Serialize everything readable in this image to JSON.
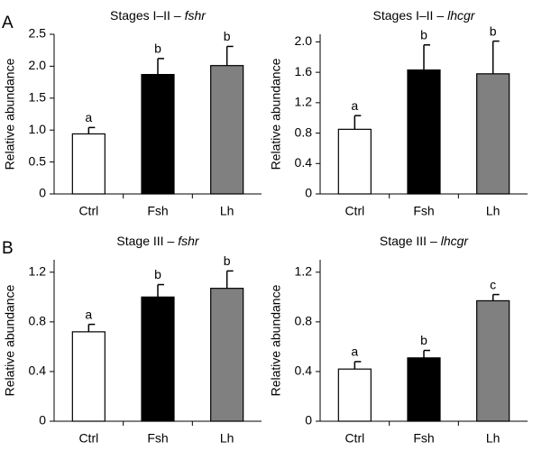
{
  "chart_data": [
    {
      "type": "bar",
      "panel_label": "A",
      "title": "Stages I–II –",
      "title_italic": "fshr",
      "ylabel": "Relative abundance",
      "categories": [
        "Ctrl",
        "Fsh",
        "Lh"
      ],
      "values": [
        0.94,
        1.87,
        2.01
      ],
      "errors": [
        0.1,
        0.25,
        0.3
      ],
      "sig_labels": [
        "a",
        "b",
        "b"
      ],
      "colors": [
        "#ffffff",
        "#000000",
        "#808080"
      ],
      "ylim": [
        0,
        2.5
      ],
      "yticks": [
        0,
        0.5,
        {
          "value": 1,
          "label": "1.0"
        },
        1.5,
        {
          "value": 2,
          "label": "2.0"
        },
        2.5
      ]
    },
    {
      "type": "bar",
      "title": "Stages I–II –",
      "title_italic": "lhcgr",
      "ylabel": "Relative abundance",
      "categories": [
        "Ctrl",
        "Fsh",
        "Lh"
      ],
      "values": [
        0.85,
        1.63,
        1.58
      ],
      "errors": [
        0.18,
        0.33,
        0.43
      ],
      "sig_labels": [
        "a",
        "b",
        "b"
      ],
      "colors": [
        "#ffffff",
        "#000000",
        "#808080"
      ],
      "ylim": [
        0,
        2.1
      ],
      "yticks": [
        0,
        0.4,
        0.8,
        1.2,
        1.6,
        {
          "value": 2,
          "label": "2.0"
        }
      ]
    },
    {
      "type": "bar",
      "panel_label": "B",
      "title": "Stage III –",
      "title_italic": "fshr",
      "ylabel": "Relative abundance",
      "categories": [
        "Ctrl",
        "Fsh",
        "Lh"
      ],
      "values": [
        0.72,
        1.0,
        1.07
      ],
      "errors": [
        0.06,
        0.1,
        0.14
      ],
      "sig_labels": [
        "a",
        "b",
        "b"
      ],
      "colors": [
        "#ffffff",
        "#000000",
        "#808080"
      ],
      "ylim": [
        0,
        1.3
      ],
      "yticks": [
        0,
        0.4,
        0.8,
        1.2
      ]
    },
    {
      "type": "bar",
      "title": "Stage III –",
      "title_italic": "lhcgr",
      "ylabel": "Relative abundance",
      "categories": [
        "Ctrl",
        "Fsh",
        "Lh"
      ],
      "values": [
        0.42,
        0.51,
        0.97
      ],
      "errors": [
        0.06,
        0.06,
        0.05
      ],
      "sig_labels": [
        "a",
        "b",
        "c"
      ],
      "colors": [
        "#ffffff",
        "#000000",
        "#808080"
      ],
      "ylim": [
        0,
        1.3
      ],
      "yticks": [
        0,
        0.4,
        0.8,
        1.2
      ]
    }
  ]
}
